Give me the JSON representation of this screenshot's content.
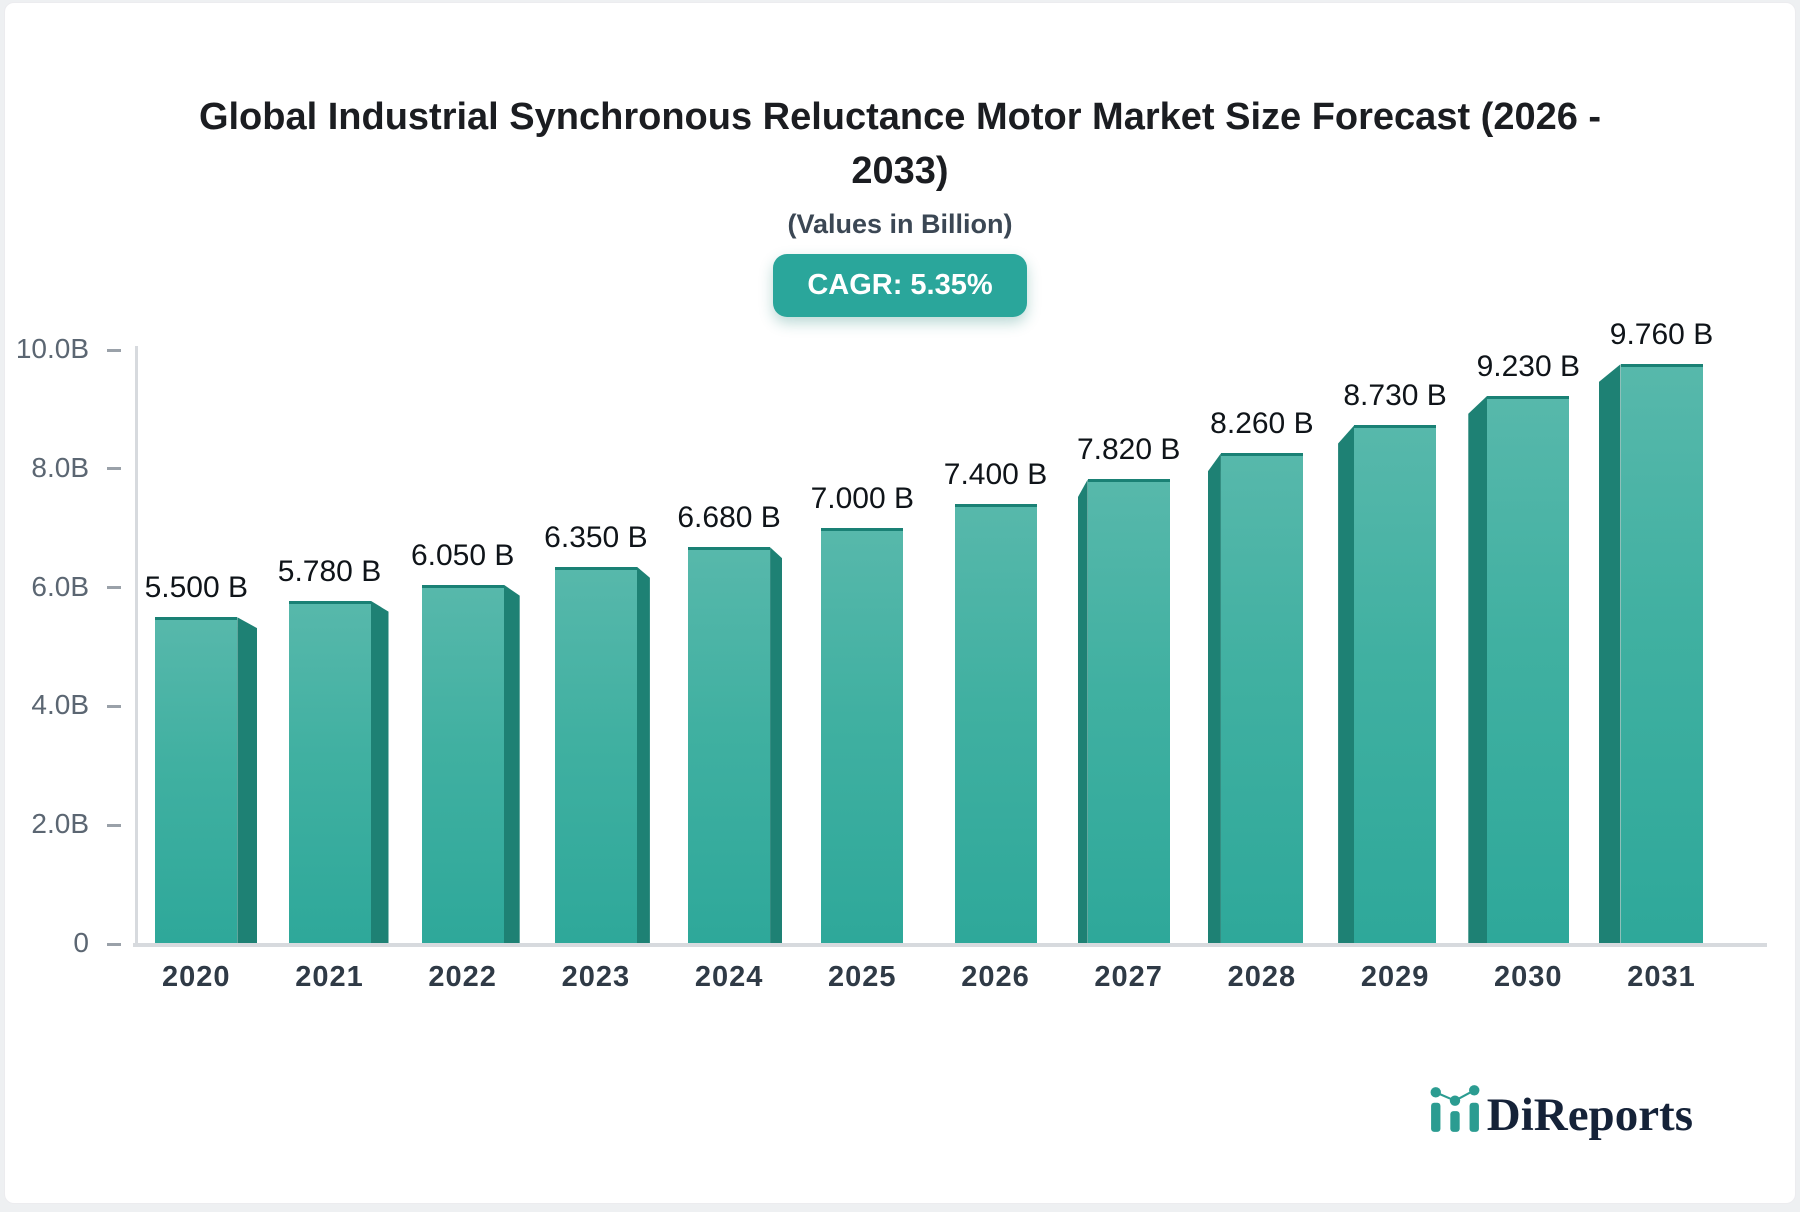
{
  "header": {
    "title": "Global Industrial Synchronous Reluctance Motor Market Size Forecast (2026 - 2033)",
    "subtitle": "(Values in Billion)",
    "badge": "CAGR: 5.35%"
  },
  "logo": {
    "text": "DiReports"
  },
  "chart_data": {
    "type": "bar",
    "title": "Global Industrial Synchronous Reluctance Motor Market Size Forecast (2026 - 2033)",
    "subtitle": "(Values in Billion)",
    "cagr": "5.35%",
    "categories": [
      "2020",
      "2021",
      "2022",
      "2023",
      "2024",
      "2025",
      "2026",
      "2027",
      "2028",
      "2029",
      "2030",
      "2031"
    ],
    "values": [
      5.5,
      5.78,
      6.05,
      6.35,
      6.68,
      7.0,
      7.4,
      7.82,
      8.26,
      8.73,
      9.23,
      9.76
    ],
    "value_labels": [
      "5.500 B",
      "5.780 B",
      "6.050 B",
      "6.350 B",
      "6.680 B",
      "7.000 B",
      "7.400 B",
      "7.820 B",
      "8.260 B",
      "8.730 B",
      "9.230 B",
      "9.760 B"
    ],
    "xlabel": "",
    "ylabel": "",
    "ylim": [
      0,
      10
    ],
    "ytick_values": [
      0,
      2,
      4,
      6,
      8,
      10
    ],
    "ytick_labels": [
      "0",
      "2.0B",
      "4.0B",
      "6.0B",
      "8.0B",
      "10.0B"
    ],
    "grid": "off",
    "legend": "none",
    "style_3d": true,
    "colors": {
      "bar_face_top": "#57b8ab",
      "bar_face_mid": "#40b0a1",
      "bar_face_bottom": "#2ea89a",
      "bar_side": "#1e8174",
      "bar_top_edge": "#1a8175",
      "axis": "#d7dade",
      "tick": "#9aa1a9",
      "accent": "#2aa69b",
      "logo_navy": "#152238",
      "logo_teal": "#2b9c91"
    }
  }
}
